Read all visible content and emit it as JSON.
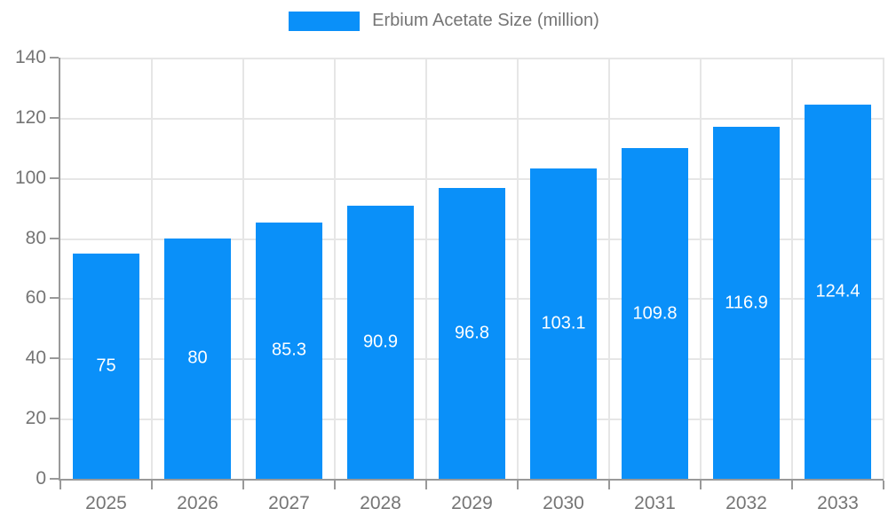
{
  "legend": {
    "label": "Erbium Acetate Size (million)"
  },
  "chart_data": {
    "type": "bar",
    "title": "Erbium Acetate Size (million)",
    "categories": [
      "2025",
      "2026",
      "2027",
      "2028",
      "2029",
      "2030",
      "2031",
      "2032",
      "2033"
    ],
    "values": [
      75,
      80,
      85.3,
      90.9,
      96.8,
      103.1,
      109.8,
      116.9,
      124.4
    ],
    "value_labels": [
      "75",
      "80",
      "85.3",
      "90.9",
      "96.8",
      "103.1",
      "109.8",
      "116.9",
      "124.4"
    ],
    "xlabel": "",
    "ylabel": "",
    "ylim": [
      0,
      140
    ],
    "yticks": [
      0,
      20,
      40,
      60,
      80,
      100,
      120,
      140
    ],
    "grid": true,
    "legend_position": "top-center",
    "value_label_position": "center-of-bar",
    "colors": {
      "bar": "#0a90f9",
      "grid": "#e6e6e6",
      "axis": "#999999",
      "tick_label": "#757575",
      "legend_label": "#757575",
      "value_label": "#ffffff",
      "background": "#ffffff"
    }
  }
}
